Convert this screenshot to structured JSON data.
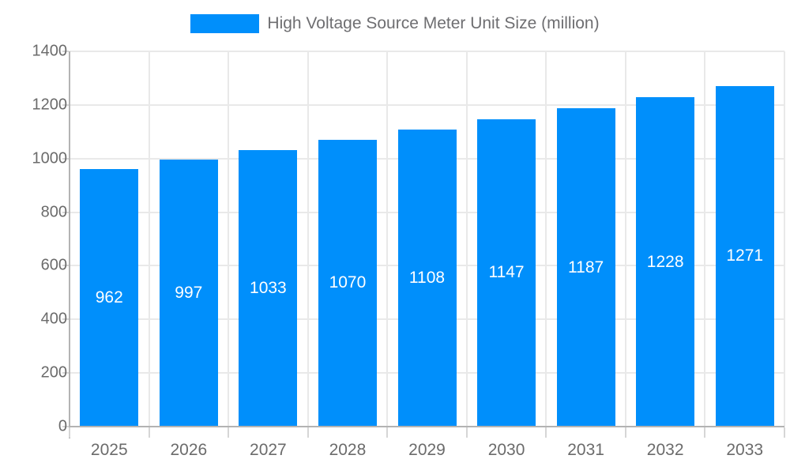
{
  "legend": {
    "label": "High Voltage Source Meter Unit Size (million)",
    "swatch_color": "#008FFB"
  },
  "chart_data": {
    "type": "bar",
    "title": "High Voltage Source Meter Unit Size (million)",
    "categories": [
      "2025",
      "2026",
      "2027",
      "2028",
      "2029",
      "2030",
      "2031",
      "2032",
      "2033"
    ],
    "series": [
      {
        "name": "High Voltage Source Meter Unit Size (million)",
        "values": [
          962,
          997,
          1033,
          1070,
          1108,
          1147,
          1187,
          1228,
          1271
        ]
      }
    ],
    "xlabel": "",
    "ylabel": "",
    "ylim": [
      0,
      1400
    ],
    "ytick_step": 200,
    "yticks": [
      0,
      200,
      400,
      600,
      800,
      1000,
      1200,
      1400
    ],
    "grid": true,
    "legend_position": "top",
    "value_labels": "centered-in-bar"
  },
  "colors": {
    "bar": "#008FFB",
    "grid": "#e9e9e9",
    "axis": "#b3b3b3",
    "tick": "#d6d6d6",
    "text": "#6b6b6b",
    "value_label": "#ffffff",
    "background": "#ffffff"
  }
}
